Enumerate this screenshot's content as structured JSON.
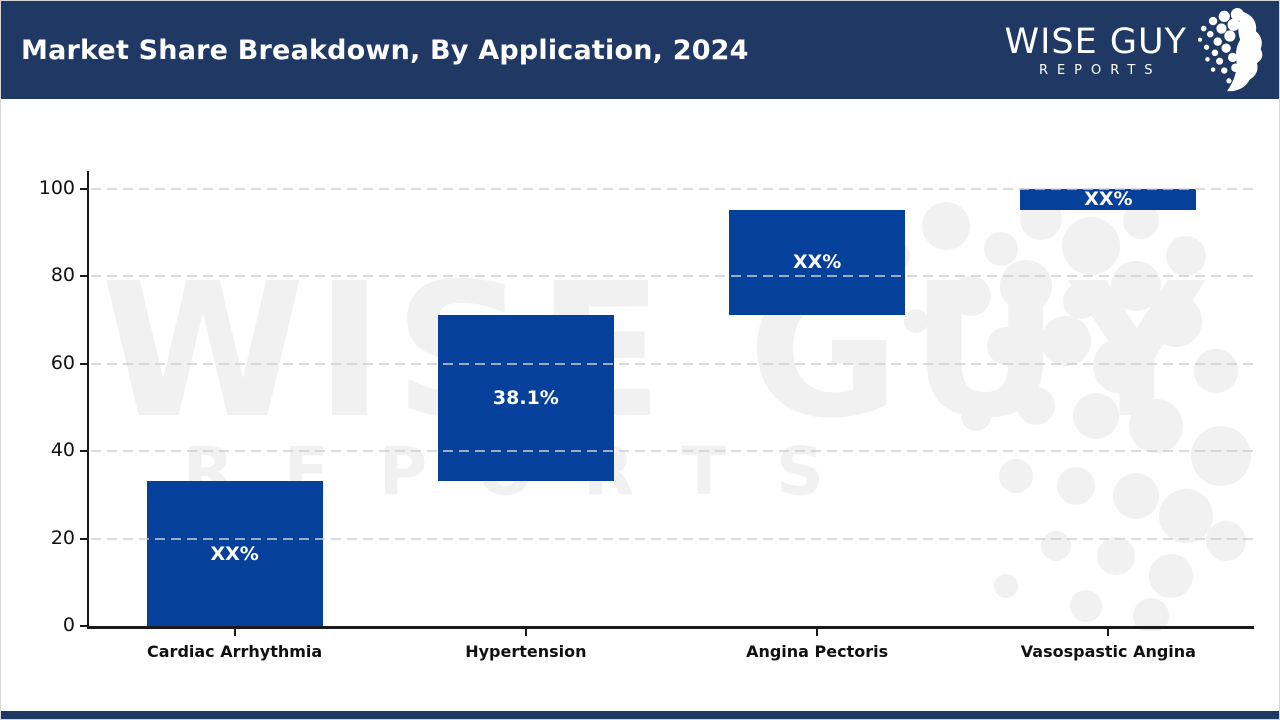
{
  "header": {
    "title": "Market Share Breakdown, By Application, 2024",
    "logo": {
      "line1": "WISE GUY",
      "line2": "REPORTS"
    }
  },
  "watermark": {
    "line1": "WISE GUY",
    "line2": "REPORTS"
  },
  "colors": {
    "header_bg": "#1f3864",
    "footer_bg": "#1f3864",
    "bar_blue": "#05419b",
    "grid": "#cecece",
    "axis": "#1a1a1a",
    "value_label": "#ffffff",
    "watermark": "#f1f1f1"
  },
  "chart_data": {
    "type": "bar",
    "subtype": "floating-segment-waterfall",
    "title": "Market Share Breakdown, By Application, 2024",
    "categories": [
      "Cardiac Arrhythmia",
      "Hypertension",
      "Angina Pectoris",
      "Vasospastic Angina"
    ],
    "segments": [
      {
        "category": "Cardiac Arrhythmia",
        "start": 0,
        "end": 33.1,
        "label": "XX%"
      },
      {
        "category": "Hypertension",
        "start": 33.1,
        "end": 71.2,
        "value": 38.1,
        "label": "38.1%"
      },
      {
        "category": "Angina Pectoris",
        "start": 71.2,
        "end": 95.1,
        "label": "XX%"
      },
      {
        "category": "Vasospastic Angina",
        "start": 95.1,
        "end": 100,
        "label": "XX%"
      }
    ],
    "yticks": [
      0,
      20,
      40,
      60,
      80,
      100
    ],
    "ylim": [
      0,
      104
    ],
    "xlabel": "",
    "ylabel": "",
    "grid": "dashed-horizontal",
    "legend": "none"
  }
}
